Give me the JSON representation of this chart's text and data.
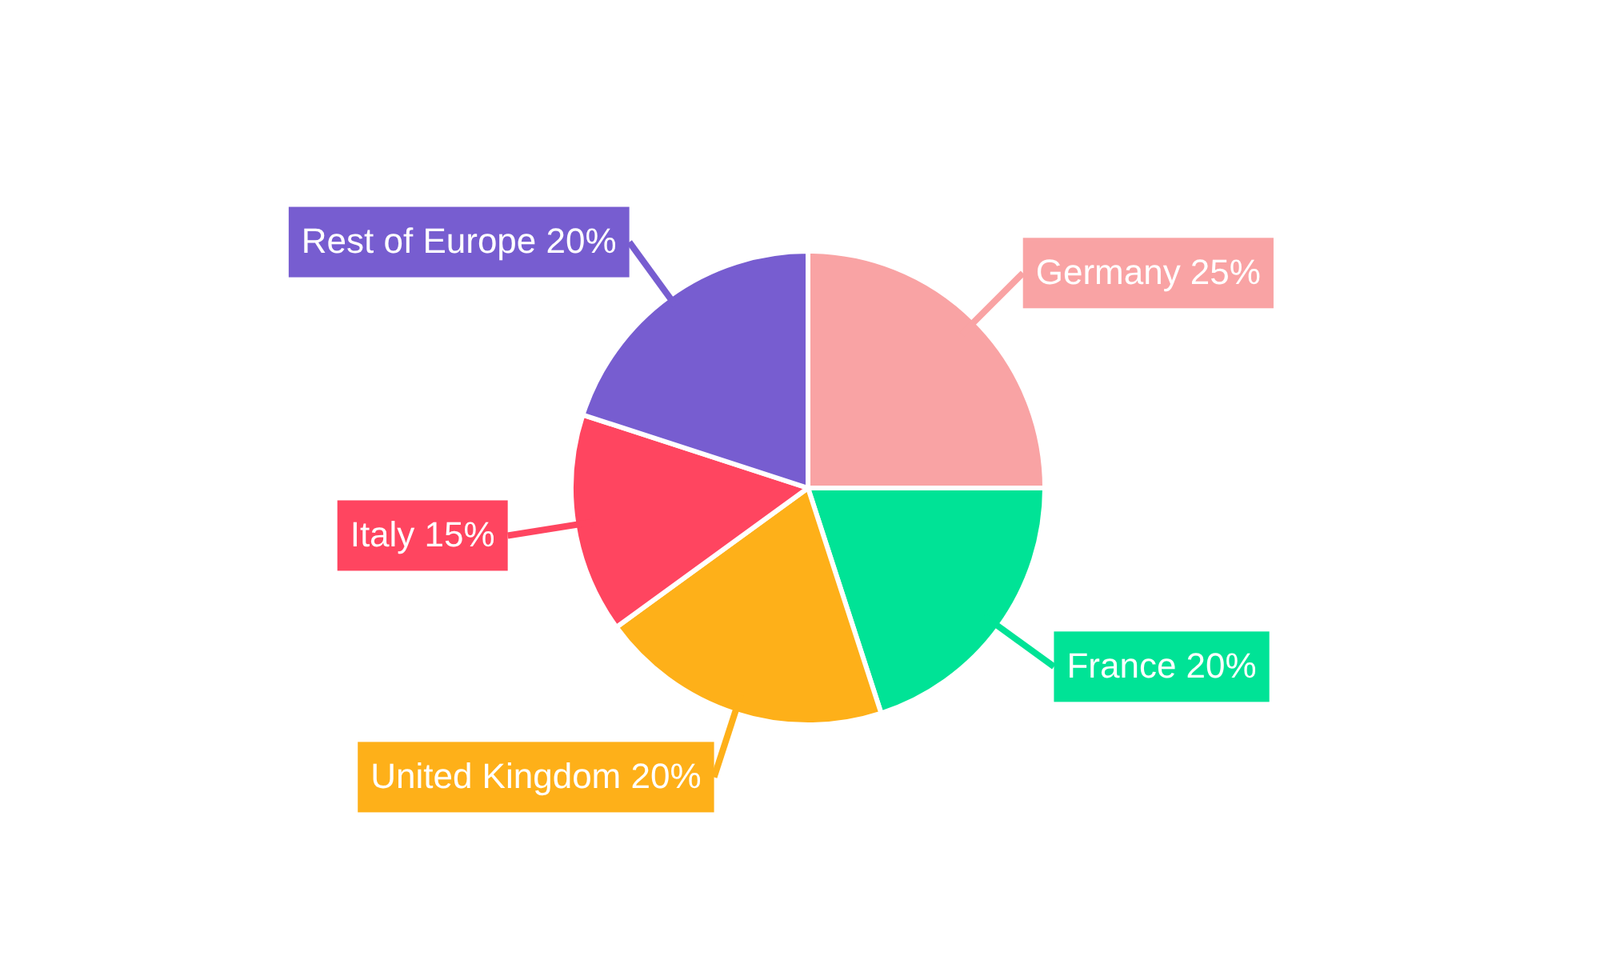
{
  "chart_data": {
    "type": "pie",
    "categories": [
      "Germany",
      "France",
      "United Kingdom",
      "Italy",
      "Rest of Europe"
    ],
    "values": [
      25,
      20,
      20,
      15,
      20
    ],
    "value_labels": [
      "25%",
      "20%",
      "20%",
      "15%",
      "20%"
    ],
    "colors": [
      "#f9a3a4",
      "#00e396",
      "#feb019",
      "#ff4560",
      "#775dd0"
    ],
    "legend": false
  }
}
